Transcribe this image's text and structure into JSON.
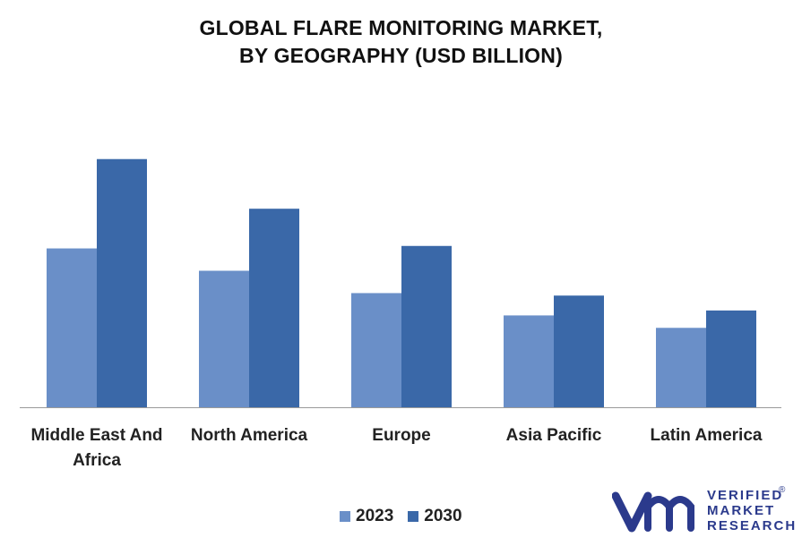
{
  "title": {
    "line1": "GLOBAL FLARE MONITORING MARKET,",
    "line2": "BY GEOGRAPHY (USD BILLION)"
  },
  "chart_data": {
    "type": "bar",
    "title": "GLOBAL FLARE MONITORING MARKET, BY GEOGRAPHY (USD BILLION)",
    "categories": [
      "Middle East And Africa",
      "North America",
      "Europe",
      "Asia Pacific",
      "Latin America"
    ],
    "category_lines": [
      [
        "Middle East And",
        "Africa"
      ],
      [
        "North America"
      ],
      [
        "Europe"
      ],
      [
        "Asia Pacific"
      ],
      [
        "Latin America"
      ]
    ],
    "series": [
      {
        "name": "2023",
        "values": [
          0.64,
          0.55,
          0.46,
          0.37,
          0.32
        ],
        "color": "#6a8fc8"
      },
      {
        "name": "2030",
        "values": [
          1.0,
          0.8,
          0.65,
          0.45,
          0.39
        ],
        "color": "#3a68a8"
      }
    ],
    "ylim": [
      0,
      1.1
    ],
    "grid": false,
    "legend": "bottom"
  },
  "logo": {
    "line1": "VERIFIED",
    "line2": "MARKET",
    "line3": "RESEARCH",
    "mark": "®",
    "color": "#2b3a8c"
  }
}
